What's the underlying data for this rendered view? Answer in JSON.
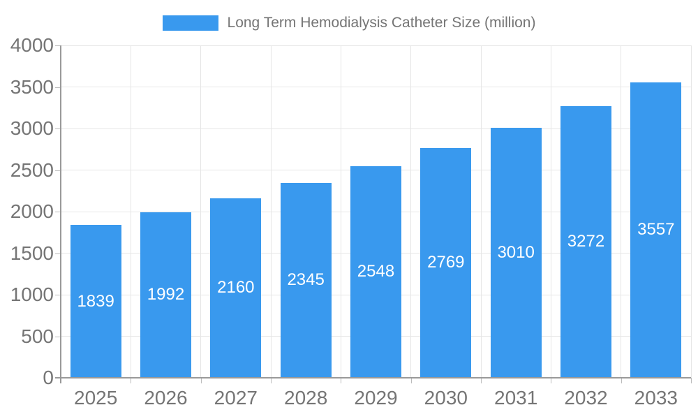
{
  "chart_data": {
    "type": "bar",
    "title": "Long Term Hemodialysis Catheter Size (million)",
    "categories": [
      "2025",
      "2026",
      "2027",
      "2028",
      "2029",
      "2030",
      "2031",
      "2032",
      "2033"
    ],
    "values": [
      1839,
      1992,
      2160,
      2345,
      2548,
      2769,
      3010,
      3272,
      3557
    ],
    "xlabel": "",
    "ylabel": "",
    "ylim": [
      0,
      4000
    ],
    "yticks": [
      0,
      500,
      1000,
      1500,
      2000,
      2500,
      3000,
      3500,
      4000
    ],
    "grid": true,
    "legend_position": "top",
    "bar_label_position": "center",
    "colors": {
      "bar": "#3999EE",
      "grid": "#e6e6e6",
      "axis": "#999999",
      "tick": "#bbbbbb",
      "text": "#757575",
      "bar_label": "#ffffff",
      "background": "#ffffff"
    }
  }
}
